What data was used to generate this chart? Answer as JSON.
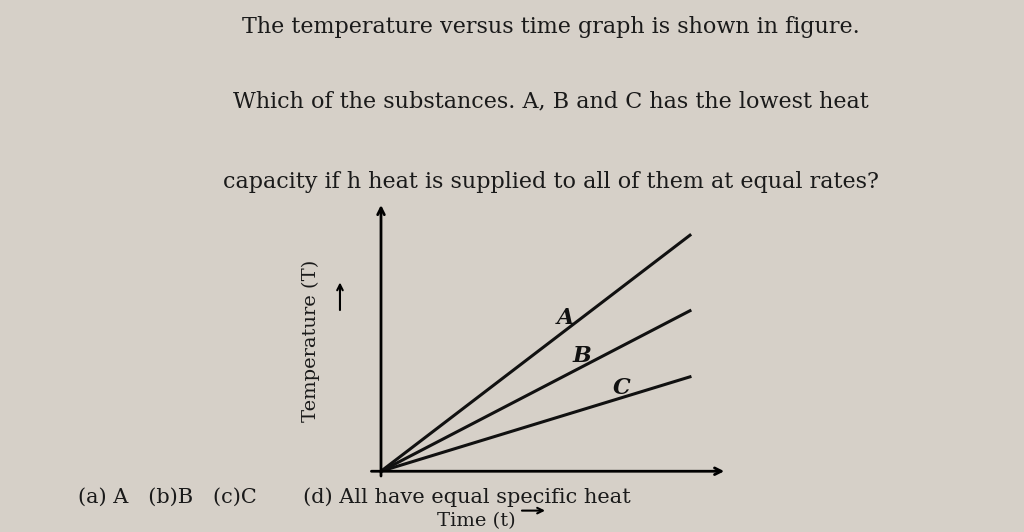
{
  "background_color": "#d6d0c8",
  "text_color": "#1a1a1a",
  "title_line1": "The temperature versus time graph is shown in figure.",
  "title_line2": "Which of the substances. A, B and C has the lowest heat",
  "title_line3": "capacity if h heat is supplied to all of them at equal rates?",
  "xlabel": "Time (t)",
  "ylabel": "Temperature (T)",
  "lines": [
    {
      "label": "A",
      "slope": 2.5,
      "color": "#111111"
    },
    {
      "label": "B",
      "slope": 1.7,
      "color": "#111111"
    },
    {
      "label": "C",
      "slope": 1.0,
      "color": "#111111"
    }
  ],
  "answer_text": "(a) A   (b)B   (c)C       (d) All have equal specific heat",
  "title_fontsize": 16,
  "axis_label_fontsize": 14,
  "line_label_fontsize": 16,
  "answer_fontsize": 15
}
